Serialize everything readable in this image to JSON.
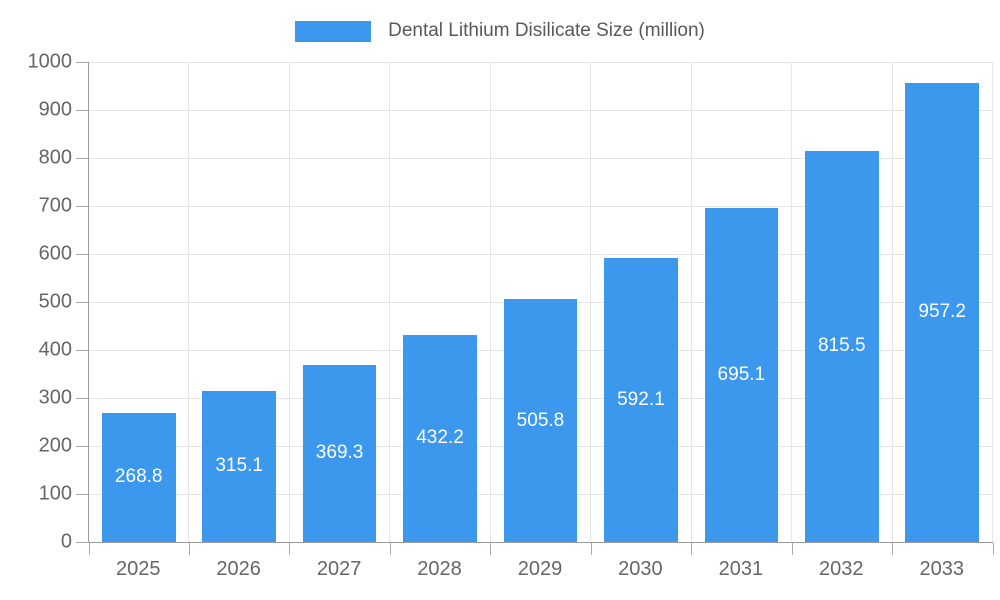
{
  "chart_data": {
    "type": "bar",
    "title": "Dental Lithium Disilicate Size (million)",
    "categories": [
      "2025",
      "2026",
      "2027",
      "2028",
      "2029",
      "2030",
      "2031",
      "2032",
      "2033"
    ],
    "values": [
      268.8,
      315.1,
      369.3,
      432.2,
      505.8,
      592.1,
      695.1,
      815.5,
      957.2
    ],
    "value_labels": [
      "268.8",
      "315.1",
      "369.3",
      "432.2",
      "505.8",
      "592.1",
      "695.1",
      "815.5",
      "957.2"
    ],
    "xlabel": "",
    "ylabel": "",
    "ylim": [
      0,
      1000
    ],
    "y_ticks": [
      0,
      100,
      200,
      300,
      400,
      500,
      600,
      700,
      800,
      900,
      1000
    ],
    "grid": true,
    "legend_position": "top",
    "colors": {
      "bar": "#3b98ed",
      "grid": "#e6e6e6",
      "axis_line": "#9a9a9a",
      "tick": "#a9a9a9",
      "axis_text": "#666666",
      "legend_text": "#58595b",
      "value_label": "#ffffff",
      "background": "#ffffff"
    }
  }
}
